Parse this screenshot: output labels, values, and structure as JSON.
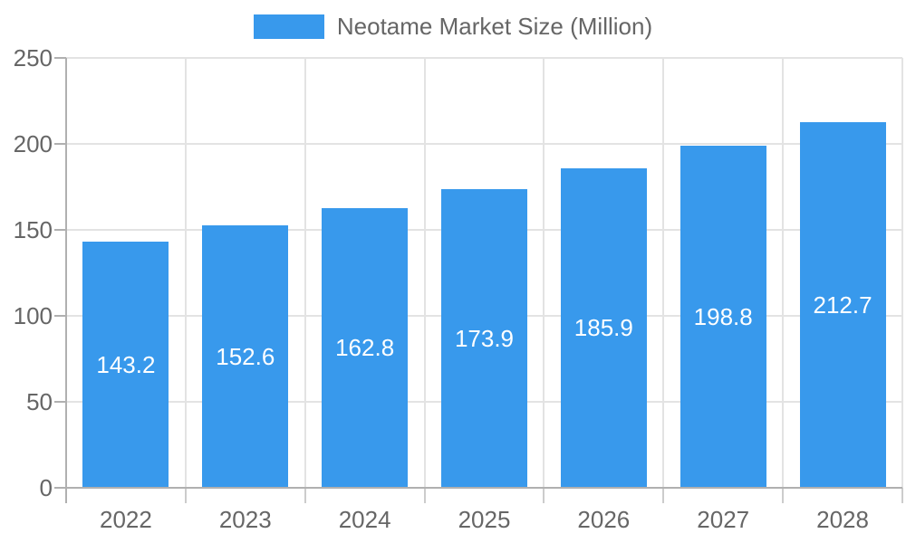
{
  "chart_data": {
    "type": "bar",
    "title": "Neotame Market Size (Million)",
    "legend": {
      "label": "Neotame Market Size (Million)",
      "position": "top"
    },
    "categories": [
      "2022",
      "2023",
      "2024",
      "2025",
      "2026",
      "2027",
      "2028"
    ],
    "values": [
      143.2,
      152.6,
      162.8,
      173.9,
      185.9,
      198.8,
      212.7
    ],
    "xlabel": "",
    "ylabel": "",
    "ylim": [
      0,
      250
    ],
    "yticks": [
      0,
      50,
      100,
      150,
      200,
      250
    ],
    "grid": true,
    "value_labels": "inside-bar-centered",
    "colors": {
      "bar": "#3899ec",
      "grid": "#e3e3e3",
      "axis": "#b0b0b0",
      "x_tick": "#cccccc",
      "tick_label": "#666666",
      "value_label": "#ffffff",
      "background": "#ffffff"
    }
  }
}
